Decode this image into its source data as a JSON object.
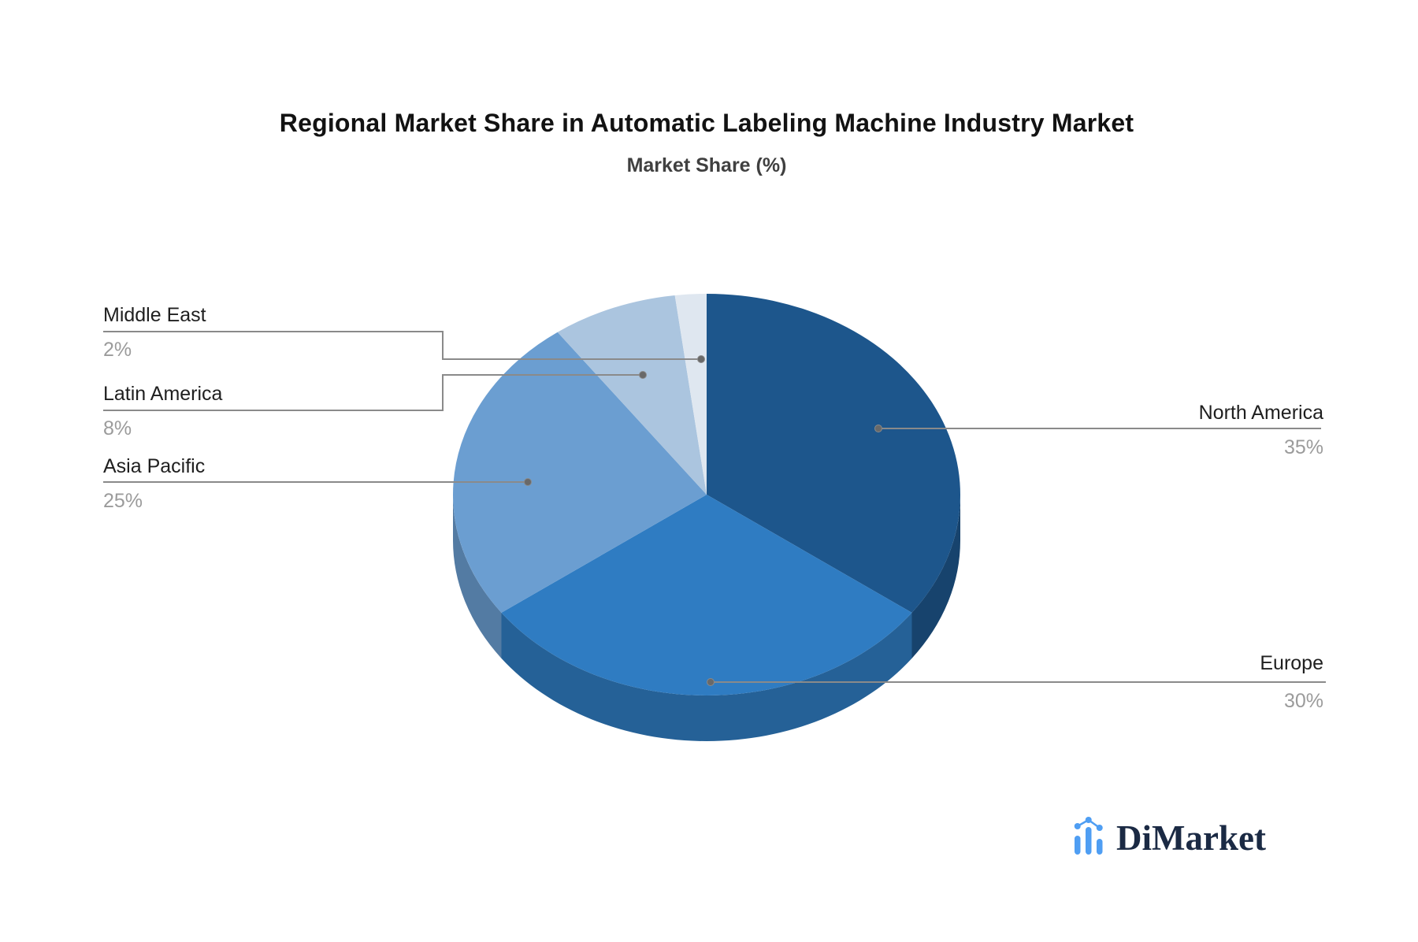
{
  "title": "Regional Market Share in Automatic Labeling Machine Industry Market",
  "subtitle": "Market Share (%)",
  "chart_data": {
    "type": "pie",
    "style": "3d",
    "title": "Regional Market Share in Automatic Labeling Machine Industry Market",
    "subtitle": "Market Share (%)",
    "unit": "%",
    "start_angle_deg": 0,
    "direction": "clockwise",
    "legend_position": "callout-labels",
    "series": [
      {
        "label": "North America",
        "value": 35,
        "display": "35%",
        "color": "#1d568c"
      },
      {
        "label": "Europe",
        "value": 30,
        "display": "30%",
        "color": "#2f7cc2"
      },
      {
        "label": "Asia Pacific",
        "value": 25,
        "display": "25%",
        "color": "#6b9ed1"
      },
      {
        "label": "Latin America",
        "value": 8,
        "display": "8%",
        "color": "#abc5df"
      },
      {
        "label": "Middle East",
        "value": 2,
        "display": "2%",
        "color": "#dfe7f0"
      }
    ]
  },
  "colors": {
    "leader_line": "#8a8a8a",
    "leader_dot": "#696969",
    "label_text": "#1f1f1f",
    "percent_text": "#9b9b9b",
    "logo_blue": "#4f9ef3",
    "logo_navy": "#1b2a44"
  },
  "logo": {
    "text": "DiMarket",
    "icon": "bar-chart-logo-icon"
  }
}
